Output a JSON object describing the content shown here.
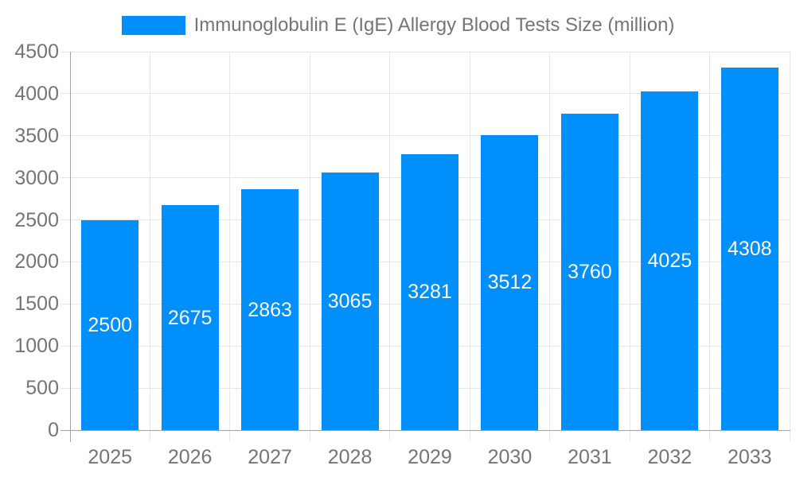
{
  "chart_data": {
    "type": "bar",
    "title": "Immunoglobulin E (IgE) Allergy Blood Tests Size (million)",
    "categories": [
      "2025",
      "2026",
      "2027",
      "2028",
      "2029",
      "2030",
      "2031",
      "2032",
      "2033"
    ],
    "series": [
      {
        "name": "Immunoglobulin E (IgE) Allergy Blood Tests Size (million)",
        "values": [
          2500,
          2675,
          2863,
          3065,
          3281,
          3512,
          3760,
          4025,
          4308
        ]
      }
    ],
    "data_labels": [
      2500,
      2675,
      2863,
      3065,
      3281,
      3512,
      3760,
      4025,
      4308
    ],
    "xlabel": "",
    "ylabel": "",
    "ylim": [
      0,
      4500
    ],
    "ytick_step": 500,
    "ytick_labels": [
      "0",
      "500",
      "1000",
      "1500",
      "2000",
      "2500",
      "3000",
      "3500",
      "4000",
      "4500"
    ],
    "grid": true,
    "legend_position": "top",
    "colors": {
      "bar": "#008FFB",
      "bar_label_text": "#FFFFFF",
      "axis_text": "#757575",
      "grid_line": "#E6E6E6",
      "axis_line": "#A3A3A3",
      "background": "#FFFFFF"
    }
  }
}
